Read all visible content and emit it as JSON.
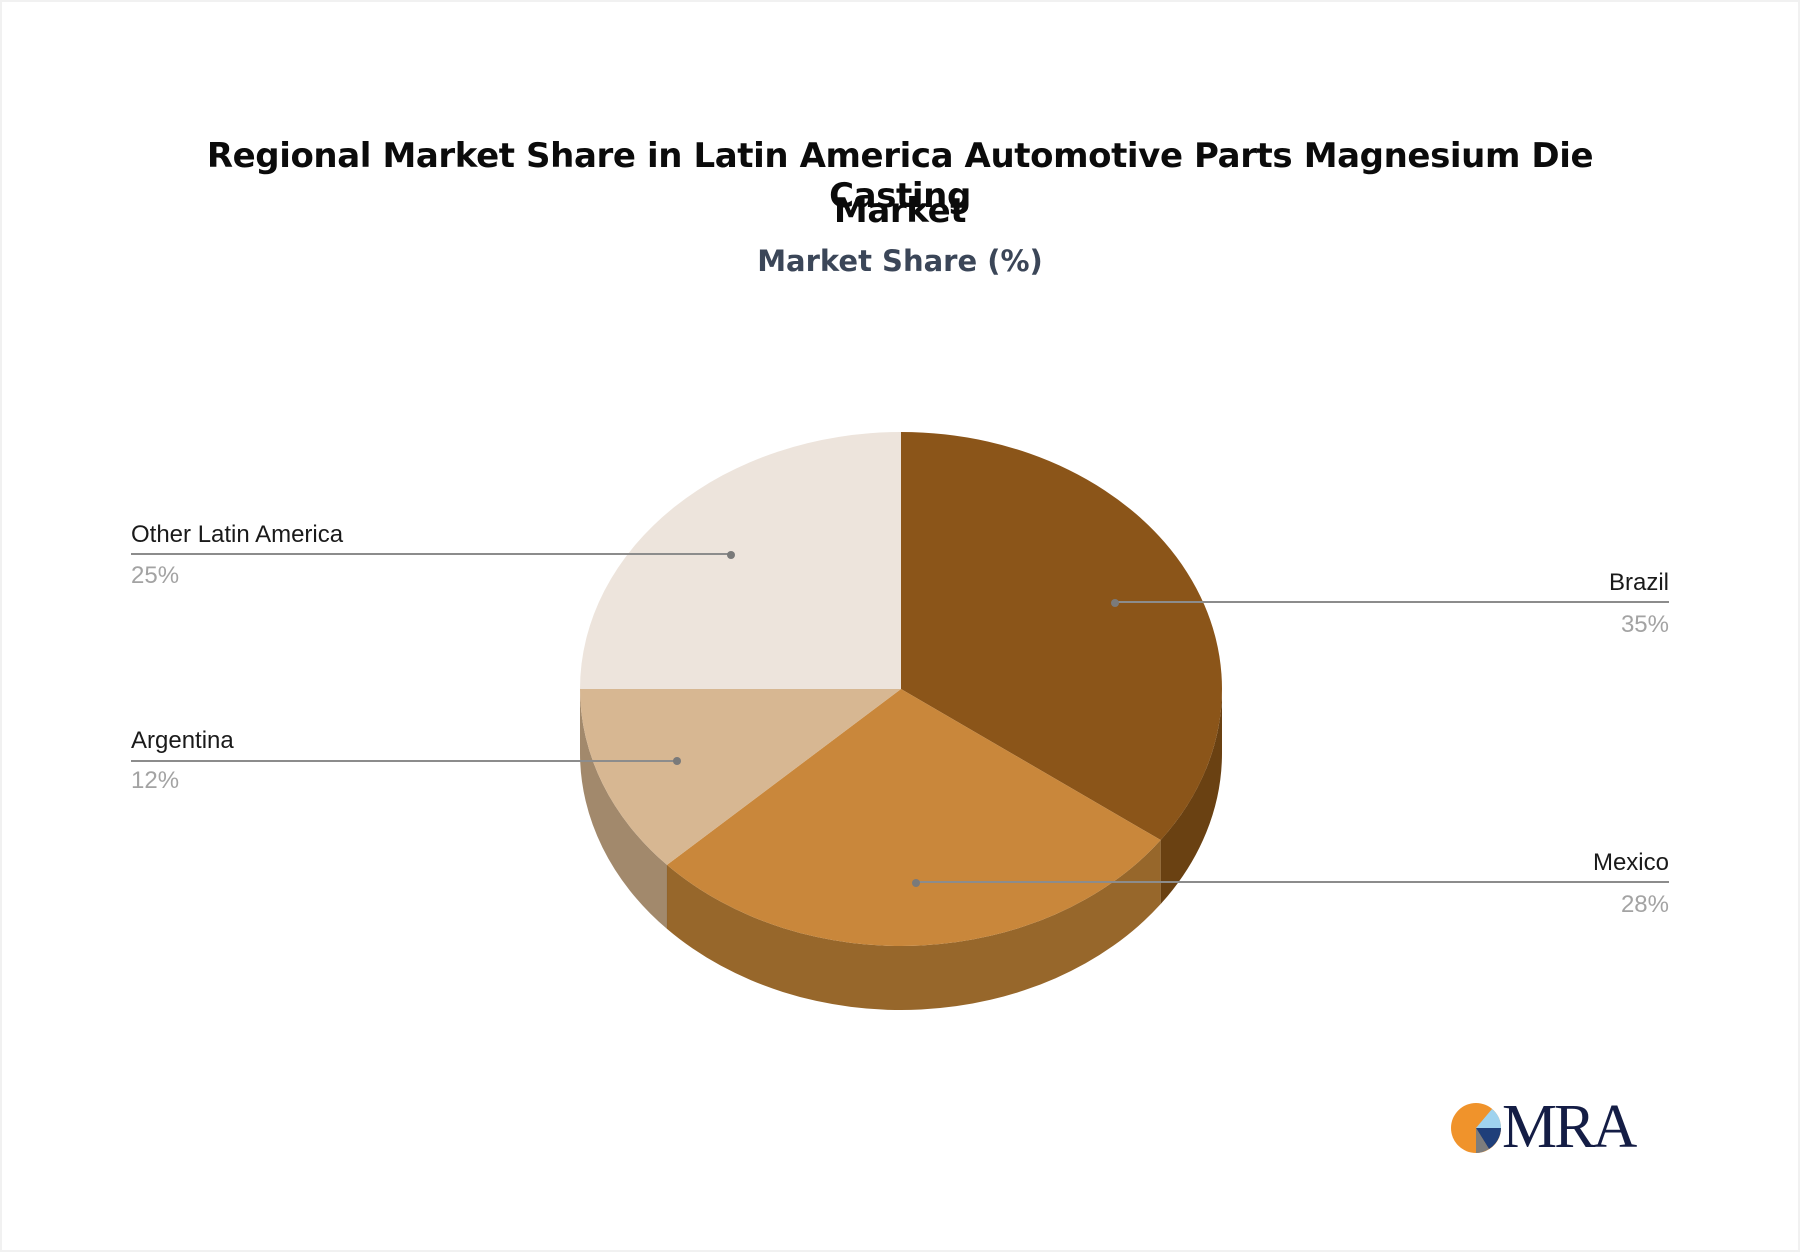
{
  "title_line1": "Regional Market Share in Latin America Automotive Parts Magnesium Die Casting",
  "title_line2": "Market",
  "subtitle": "Market Share (%)",
  "logo": {
    "text": "MRA",
    "colors": [
      "#f0932b",
      "#9fd3ef",
      "#1f3f7a",
      "#7d7d7d"
    ]
  },
  "chart_data": {
    "type": "pie",
    "style": "3d",
    "title": "Regional Market Share in Latin America Automotive Parts Magnesium Die Casting Market",
    "subtitle": "Market Share (%)",
    "categories": [
      "Brazil",
      "Mexico",
      "Argentina",
      "Other Latin America"
    ],
    "values": [
      35,
      28,
      12,
      25
    ],
    "unit": "%",
    "labels": [
      "35%",
      "28%",
      "12%",
      "25%"
    ],
    "colors": {
      "top": [
        "#8b5519",
        "#c9873b",
        "#d7b792",
        "#ede4dc"
      ],
      "side": [
        "#6a4112",
        "#97672b",
        "#a2896c",
        "#c8bfb7"
      ]
    },
    "start_angle_deg": 0,
    "direction": "clockwise",
    "legend": "callout labels"
  }
}
